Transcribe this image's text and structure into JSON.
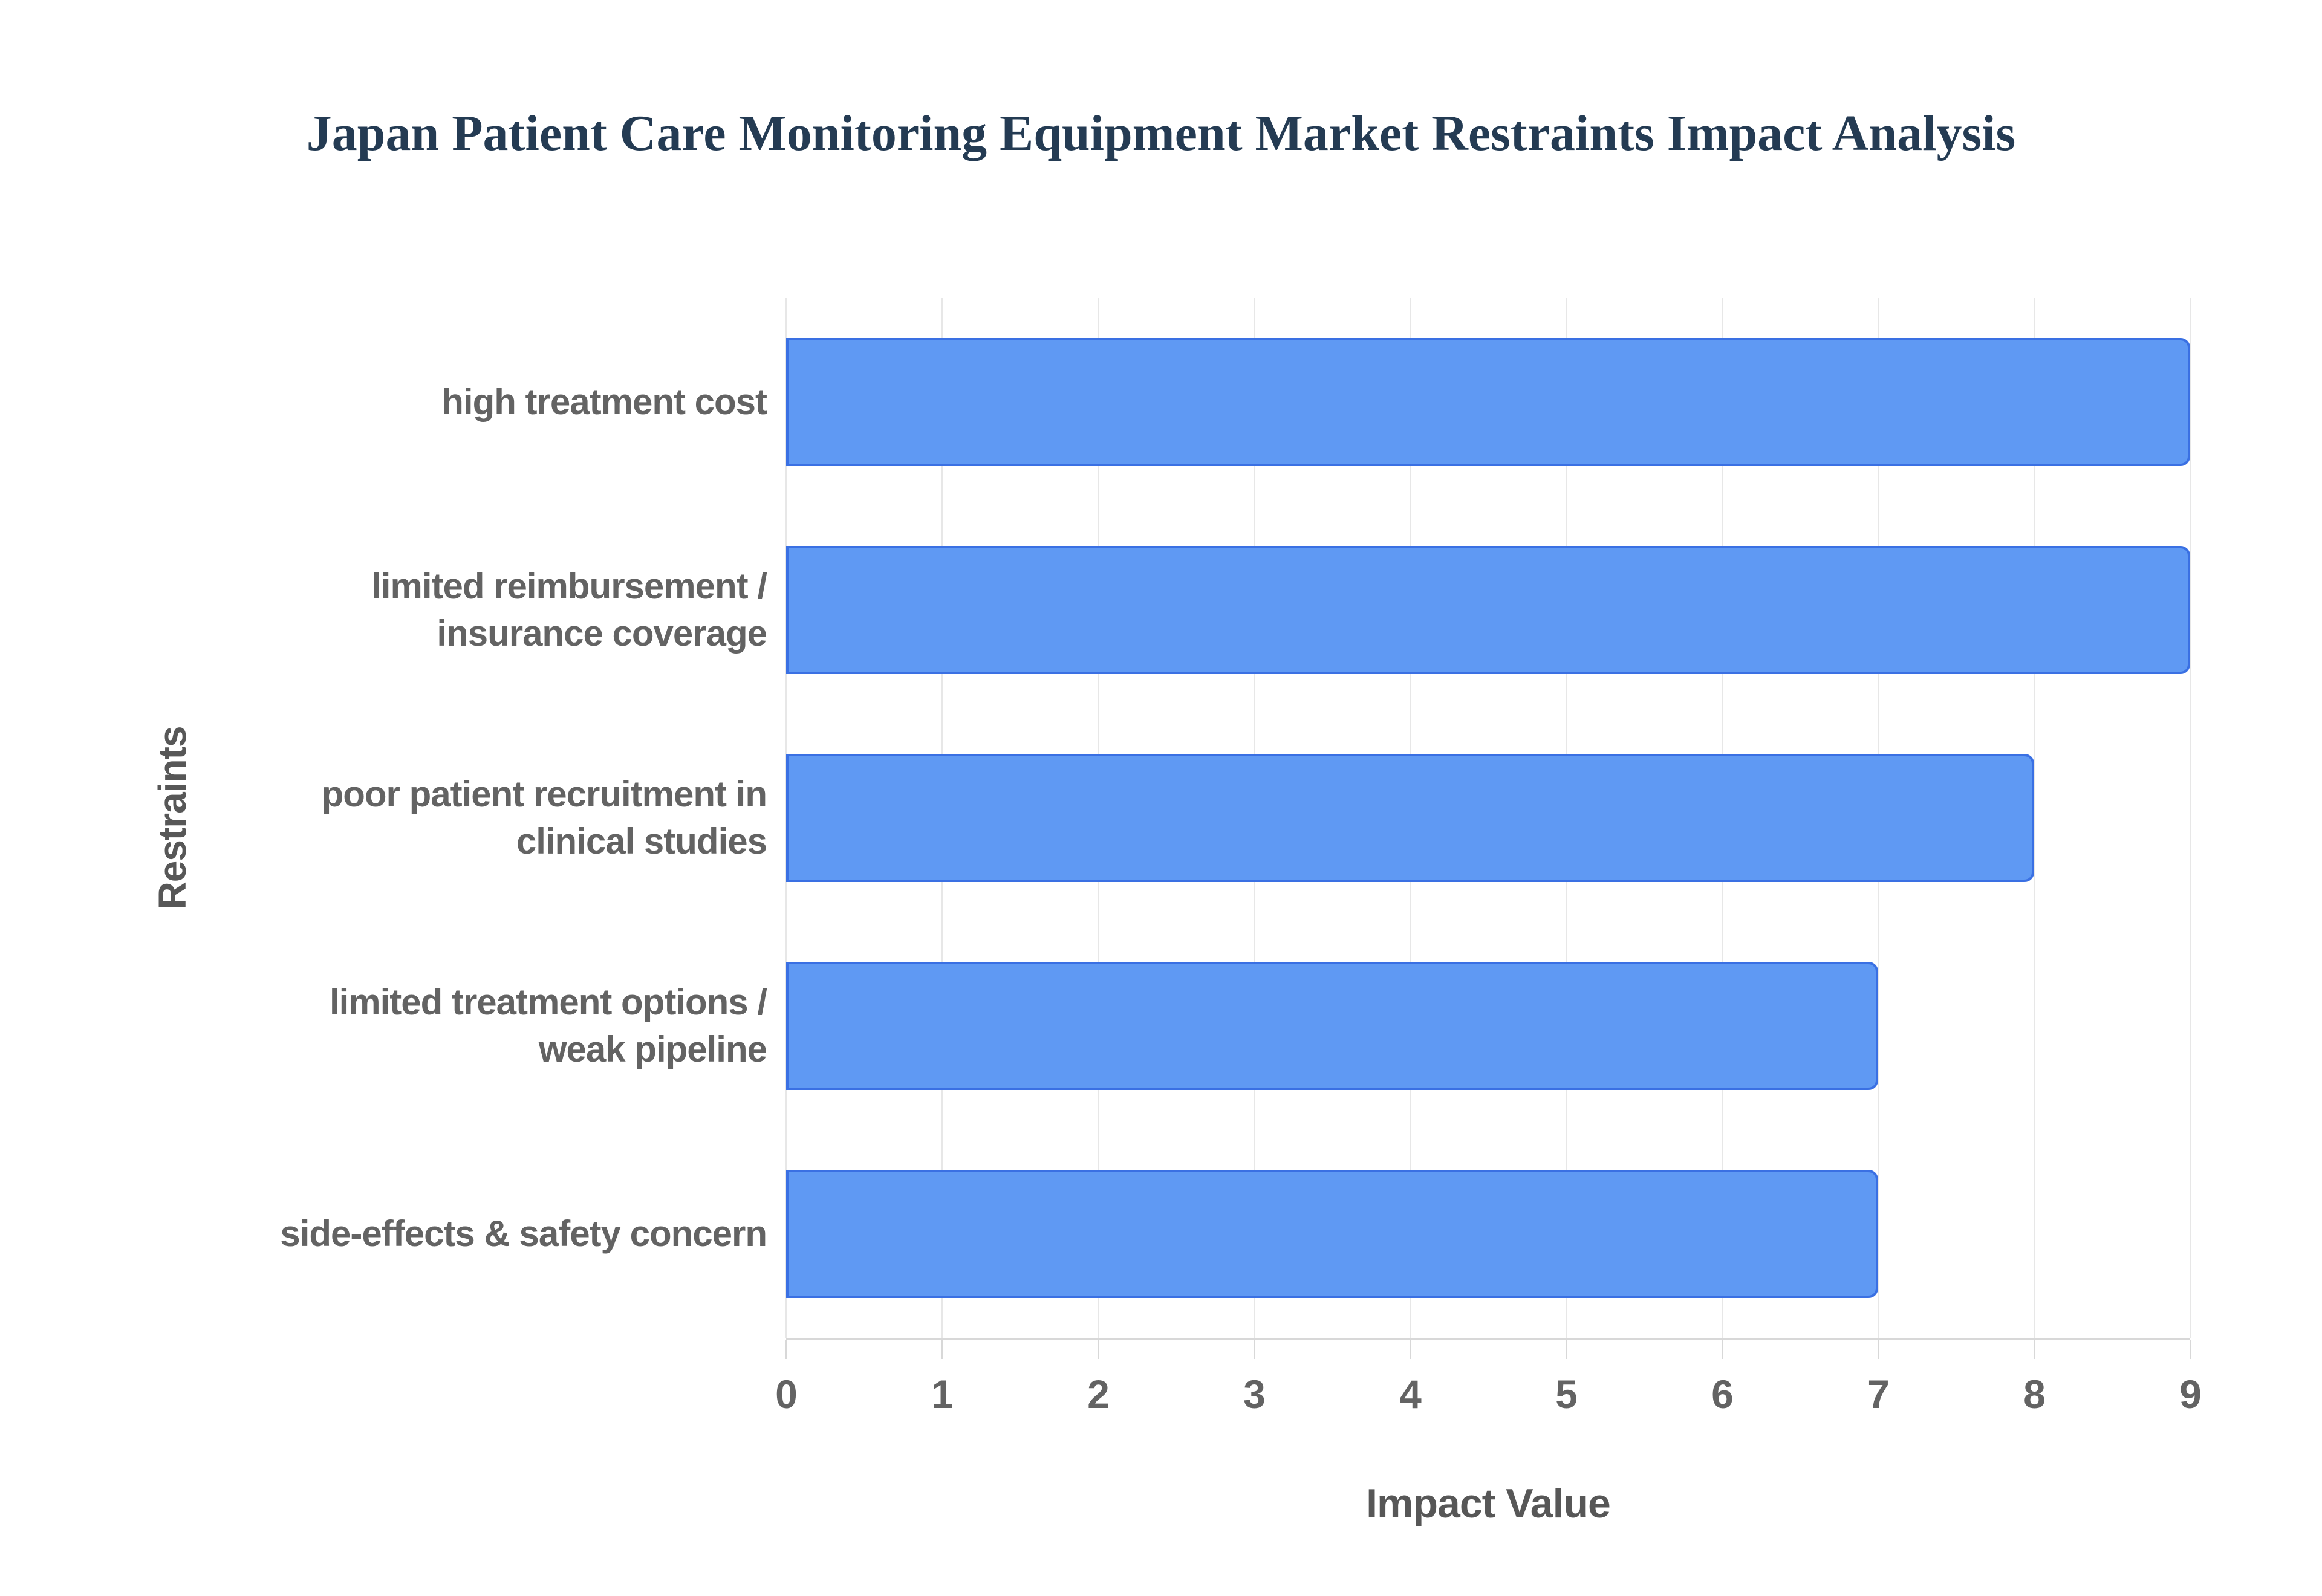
{
  "chart_data": {
    "type": "bar",
    "orientation": "horizontal",
    "title": "Japan Patient Care Monitoring Equipment Market Restraints Impact Analysis",
    "categories": [
      "high treatment cost",
      "limited reimbursement / insurance coverage",
      "poor patient recruitment in clinical studies",
      "limited treatment options / weak pipeline",
      "side-effects & safety concern"
    ],
    "label_lines": [
      [
        "high treatment cost"
      ],
      [
        "limited reimbursement /",
        "insurance coverage"
      ],
      [
        "poor patient recruitment in",
        "clinical studies"
      ],
      [
        "limited treatment options /",
        "weak pipeline"
      ],
      [
        "side-effects & safety concern"
      ]
    ],
    "values": [
      9,
      9,
      8,
      7,
      7
    ],
    "xlabel": "Impact Value",
    "ylabel": "Restraints",
    "xlim": [
      0,
      9
    ],
    "xticks": [
      "0",
      "1",
      "2",
      "3",
      "4",
      "5",
      "6",
      "7",
      "8",
      "9"
    ],
    "grid": true,
    "legend": "none",
    "colors": {
      "bar_fill": "#5f99f3",
      "bar_border": "#3a70e3",
      "title_color": "#243b53",
      "label_color": "#636363",
      "axis_title_color": "#575757",
      "gridline_color": "#e7e7e7",
      "axis_line_color": "#d8d8d8",
      "background": "#ffffff"
    }
  }
}
